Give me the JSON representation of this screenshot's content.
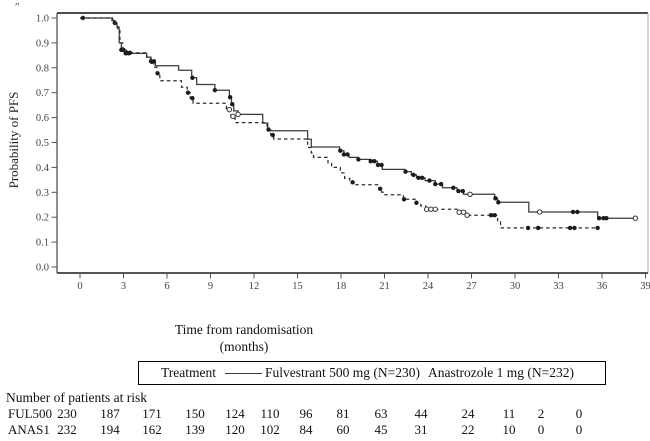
{
  "page": {
    "corner_mark": "″"
  },
  "chart_data": {
    "type": "line",
    "subtype": "kaplan-meier-step",
    "title": "",
    "ylabel": "Probability of PFS",
    "xlabel_line1": "Time from randomisation",
    "xlabel_line2": "(months)",
    "ylim": [
      0.0,
      1.0
    ],
    "xlim": [
      0,
      39
    ],
    "grid": false,
    "y_ticks": [
      "1.0",
      "0.9",
      "0.8",
      "0.7",
      "0.6",
      "0.5",
      "0.4",
      "0.3",
      "0.2",
      "0.1",
      "0.0"
    ],
    "x_ticks": [
      0,
      3,
      6,
      9,
      12,
      15,
      18,
      21,
      24,
      27,
      30,
      33,
      36,
      39
    ],
    "axis_color": "#555555",
    "legend": {
      "position": "bottom-box",
      "title": "Treatment",
      "entries": [
        "Fulvestrant 500 mg (N=230)",
        "Anastrozole 1 mg (N=232)"
      ]
    },
    "series": [
      {
        "name": "Fulvestrant 500 mg (N=230)",
        "style": "solid",
        "color": "#3a3a3a",
        "steps": [
          [
            0,
            1.0
          ],
          [
            2.2,
            0.99
          ],
          [
            2.4,
            0.98
          ],
          [
            2.55,
            0.963
          ],
          [
            2.7,
            0.9
          ],
          [
            2.85,
            0.872
          ],
          [
            3.05,
            0.858
          ],
          [
            4.6,
            0.843
          ],
          [
            4.9,
            0.826
          ],
          [
            5.2,
            0.808
          ],
          [
            6.8,
            0.79
          ],
          [
            7.7,
            0.76
          ],
          [
            8.05,
            0.733
          ],
          [
            9.3,
            0.71
          ],
          [
            10.3,
            0.682
          ],
          [
            10.45,
            0.654
          ],
          [
            10.6,
            0.627
          ],
          [
            10.9,
            0.613
          ],
          [
            12.6,
            0.578
          ],
          [
            12.95,
            0.547
          ],
          [
            15.7,
            0.513
          ],
          [
            15.95,
            0.482
          ],
          [
            17.9,
            0.467
          ],
          [
            18.2,
            0.452
          ],
          [
            18.55,
            0.44
          ],
          [
            19.2,
            0.432
          ],
          [
            20.0,
            0.425
          ],
          [
            20.5,
            0.41
          ],
          [
            20.85,
            0.392
          ],
          [
            22.4,
            0.383
          ],
          [
            22.85,
            0.37
          ],
          [
            23.2,
            0.358
          ],
          [
            23.8,
            0.347
          ],
          [
            24.5,
            0.333
          ],
          [
            25.0,
            0.318
          ],
          [
            26.0,
            0.305
          ],
          [
            26.45,
            0.292
          ],
          [
            28.6,
            0.276
          ],
          [
            28.8,
            0.26
          ],
          [
            30.95,
            0.221
          ],
          [
            35.7,
            0.196
          ]
        ],
        "end_t": 38.3,
        "censor_filled": [
          0.2,
          2.4,
          2.85,
          3.0,
          3.15,
          3.35,
          4.9,
          5.1,
          7.75,
          9.3,
          10.35,
          10.5,
          17.95,
          18.2,
          18.45,
          19.2,
          20.05,
          20.3,
          20.55,
          20.8,
          22.45,
          23.0,
          23.35,
          23.6,
          24.1,
          24.5,
          24.9,
          25.75,
          26.1,
          26.4,
          28.65,
          28.85,
          34.0,
          34.3,
          35.8,
          36.1,
          36.3
        ],
        "censor_open": [
          10.9,
          26.9,
          31.7,
          38.3
        ]
      },
      {
        "name": "Anastrozole 1 mg (N=232)",
        "style": "dashed",
        "color": "#2e2e2e",
        "steps": [
          [
            0,
            1.0
          ],
          [
            2.25,
            0.99
          ],
          [
            2.45,
            0.974
          ],
          [
            2.6,
            0.95
          ],
          [
            2.75,
            0.9
          ],
          [
            2.95,
            0.875
          ],
          [
            3.2,
            0.86
          ],
          [
            4.6,
            0.843
          ],
          [
            4.85,
            0.824
          ],
          [
            5.1,
            0.802
          ],
          [
            5.3,
            0.778
          ],
          [
            5.5,
            0.748
          ],
          [
            7.0,
            0.722
          ],
          [
            7.4,
            0.7
          ],
          [
            7.6,
            0.678
          ],
          [
            7.8,
            0.658
          ],
          [
            10.1,
            0.632
          ],
          [
            10.4,
            0.605
          ],
          [
            10.7,
            0.58
          ],
          [
            12.9,
            0.552
          ],
          [
            13.15,
            0.53
          ],
          [
            13.35,
            0.514
          ],
          [
            15.7,
            0.48
          ],
          [
            15.95,
            0.458
          ],
          [
            16.1,
            0.44
          ],
          [
            17.1,
            0.418
          ],
          [
            17.35,
            0.4
          ],
          [
            17.95,
            0.378
          ],
          [
            18.25,
            0.356
          ],
          [
            18.6,
            0.34
          ],
          [
            18.85,
            0.33
          ],
          [
            20.6,
            0.314
          ],
          [
            20.8,
            0.3
          ],
          [
            20.95,
            0.29
          ],
          [
            22.3,
            0.272
          ],
          [
            23.2,
            0.258
          ],
          [
            23.5,
            0.245
          ],
          [
            23.85,
            0.232
          ],
          [
            26.1,
            0.22
          ],
          [
            26.6,
            0.208
          ],
          [
            28.8,
            0.182
          ],
          [
            29.0,
            0.157
          ]
        ],
        "end_t": 35.8,
        "censor_filled": [
          3.25,
          3.45,
          4.95,
          5.35,
          7.45,
          7.75,
          13.0,
          13.3,
          18.8,
          20.7,
          22.35,
          23.2,
          28.35,
          28.6,
          30.9,
          31.6,
          33.8,
          34.1,
          35.7
        ],
        "censor_open": [
          10.3,
          10.55,
          23.9,
          24.2,
          24.5,
          26.15,
          26.45,
          26.7
        ]
      }
    ]
  },
  "legend": {
    "title": "Treatment",
    "entry1": "Fulvestrant 500 mg (N=230)",
    "entry2": "Anastrozole 1 mg (N=232)"
  },
  "risk_table": {
    "title": "Number of patients at risk",
    "rows": [
      {
        "label": "FUL500",
        "values": [
          230,
          187,
          171,
          150,
          124,
          110,
          96,
          81,
          63,
          44,
          24,
          11,
          2,
          0
        ]
      },
      {
        "label": "ANAS1",
        "values": [
          232,
          194,
          162,
          139,
          120,
          102,
          84,
          60,
          45,
          31,
          22,
          10,
          0,
          0
        ]
      }
    ]
  }
}
